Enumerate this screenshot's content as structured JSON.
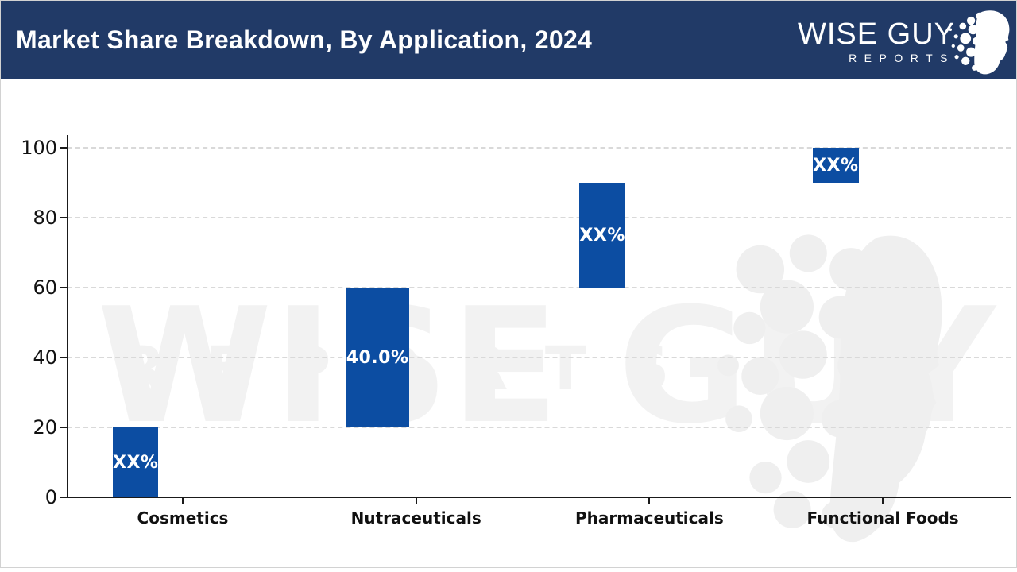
{
  "header": {
    "title": "Market Share Breakdown, By Application, 2024",
    "bg_color": "#213A67",
    "logo": {
      "line1": "WISE GUY",
      "line2": "REPORTS"
    }
  },
  "watermark": {
    "line1": "WISE GUY",
    "line2": "REPORTS"
  },
  "chart_data": {
    "type": "bar",
    "variant": "waterfall",
    "title": "Market Share Breakdown, By Application, 2024",
    "categories": [
      "Cosmetics",
      "Nutraceuticals",
      "Pharmaceuticals",
      "Functional Foods"
    ],
    "segments": [
      {
        "category": "Cosmetics",
        "start": 0,
        "end": 20,
        "value_pct": 20,
        "label": "XX%"
      },
      {
        "category": "Nutraceuticals",
        "start": 20,
        "end": 60,
        "value_pct": 40,
        "label": "40.0%"
      },
      {
        "category": "Pharmaceuticals",
        "start": 60,
        "end": 90,
        "value_pct": 30,
        "label": "XX%"
      },
      {
        "category": "Functional Foods",
        "start": 90,
        "end": 100,
        "value_pct": 10,
        "label": "XX%"
      }
    ],
    "yticks": [
      0,
      20,
      40,
      60,
      80,
      100
    ],
    "ylim": [
      0,
      105
    ],
    "xlabel": "",
    "ylabel": "",
    "grid": "horizontal-dashed",
    "legend": "none",
    "bar_color": "#0C4DA2",
    "bar_label_color": "#FFFFFF",
    "grid_color": "#D9D9D9",
    "axis_color": "#1A1A1A"
  }
}
